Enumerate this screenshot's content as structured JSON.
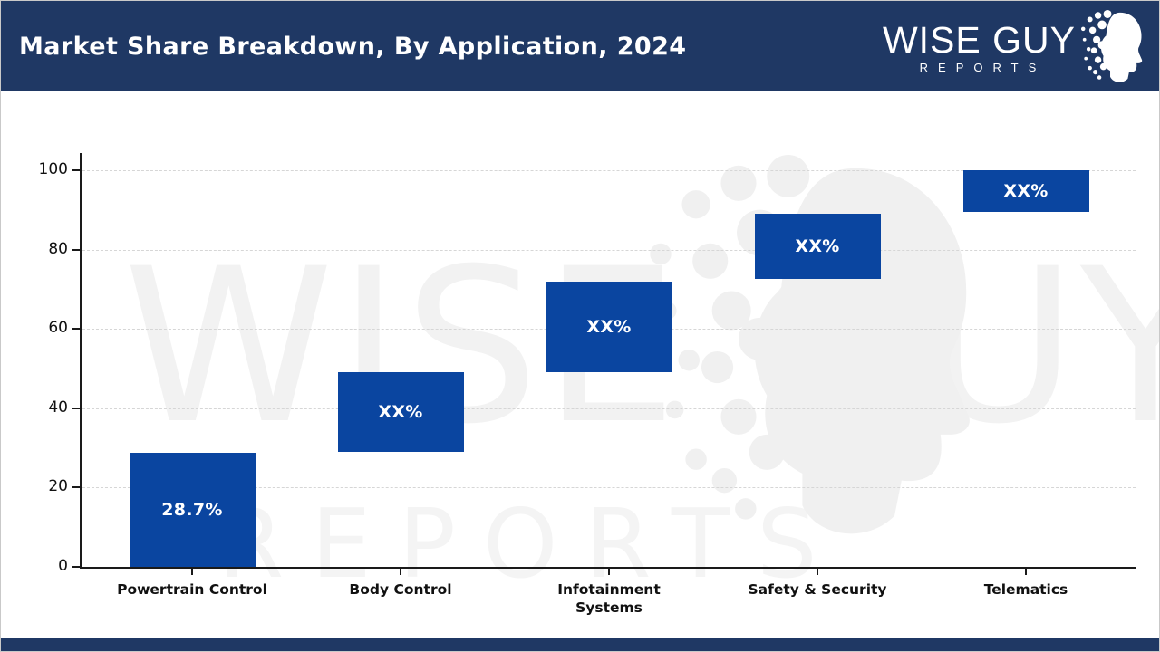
{
  "header": {
    "title": "Market Share Breakdown, By Application, 2024",
    "logo": {
      "line1": "WISE GUY",
      "line2": "REPORTS"
    }
  },
  "watermark": {
    "line1": "WISE GUY",
    "line2": "REPORTS"
  },
  "chart_data": {
    "type": "bar",
    "variant": "waterfall-segments",
    "title": "Market Share Breakdown, By Application, 2024",
    "categories": [
      "Powertrain Control",
      "Body Control",
      "Infotainment Systems",
      "Safety & Security",
      "Telematics"
    ],
    "tick_labels": [
      "Powertrain Control",
      "Body Control",
      "Infotainment\nSystems",
      "Safety & Security",
      "Telematics"
    ],
    "segments": [
      {
        "category": "Powertrain Control",
        "start": 0,
        "end": 28.7,
        "label": "28.7%"
      },
      {
        "category": "Body Control",
        "start": 29,
        "end": 49,
        "label": "XX%"
      },
      {
        "category": "Infotainment Systems",
        "start": 49,
        "end": 72,
        "label": "XX%"
      },
      {
        "category": "Safety & Security",
        "start": 72.5,
        "end": 89,
        "label": "XX%"
      },
      {
        "category": "Telematics",
        "start": 89.5,
        "end": 100,
        "label": "XX%"
      }
    ],
    "y_ticks": [
      0,
      20,
      40,
      60,
      80,
      100
    ],
    "ylim": [
      0,
      105
    ],
    "xlabel": "",
    "ylabel": "",
    "grid": "horizontal-dashed",
    "legend": "none",
    "bar_color": "#0a45a0"
  },
  "colors": {
    "header_bg": "#1f3864",
    "footer_bg": "#1f3864",
    "bar": "#0a45a0",
    "axis": "#1a1a1a",
    "grid": "#d6d6d6",
    "bar_value_text": "#ffffff",
    "axis_text": "#111111",
    "watermark_text": "#f2f2f2"
  }
}
